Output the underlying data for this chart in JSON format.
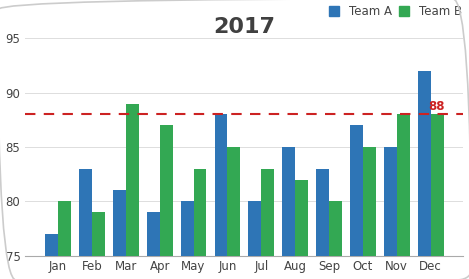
{
  "title": "2017",
  "months": [
    "Jan",
    "Feb",
    "Mar",
    "Apr",
    "May",
    "Jun",
    "Jul",
    "Aug",
    "Sep",
    "Oct",
    "Nov",
    "Dec"
  ],
  "team_a": [
    77,
    83,
    81,
    79,
    80,
    88,
    80,
    85,
    83,
    87,
    85,
    92
  ],
  "team_b": [
    80,
    79,
    89,
    87,
    83,
    85,
    83,
    82,
    80,
    85,
    88,
    88
  ],
  "team_a_color": "#2E75B6",
  "team_b_color": "#33A853",
  "hline_y": 88,
  "hline_color": "#CC2222",
  "hline_label": "88",
  "ylim": [
    75,
    95
  ],
  "yticks": [
    75,
    80,
    85,
    90,
    95
  ],
  "background_color": "#FFFFFF",
  "title_fontsize": 16,
  "tick_fontsize": 8.5,
  "legend_fontsize": 8.5,
  "bar_width": 0.38
}
